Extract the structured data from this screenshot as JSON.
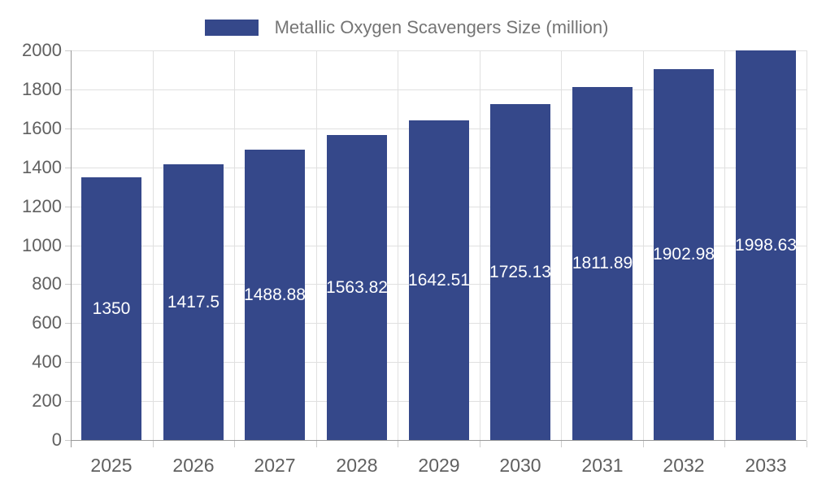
{
  "chart_data": {
    "type": "bar",
    "legend": "Metallic Oxygen Scavengers Size (million)",
    "categories": [
      "2025",
      "2026",
      "2027",
      "2028",
      "2029",
      "2030",
      "2031",
      "2032",
      "2033"
    ],
    "values": [
      1350,
      1417.5,
      1488.88,
      1563.82,
      1642.51,
      1725.13,
      1811.89,
      1902.98,
      1998.63
    ],
    "value_labels": [
      "1350",
      "1417.5",
      "1488.88",
      "1563.82",
      "1642.51",
      "1725.13",
      "1811.89",
      "1902.98",
      "1998.63"
    ],
    "xlabel": "",
    "ylabel": "",
    "ylim": [
      0,
      2000
    ],
    "ytick_interval": 200,
    "ytick_labels": [
      "0",
      "200",
      "400",
      "600",
      "800",
      "1000",
      "1200",
      "1400",
      "1600",
      "1800",
      "2000"
    ],
    "grid": true,
    "legend_position": "top-center",
    "bar_label_position": "inside-center",
    "colors": {
      "bar": "#35488A",
      "grid": "#E0E0E0",
      "axis": "#999999",
      "tick": "#CCCCCC",
      "axis_label": "#606060",
      "legend_text": "#757575",
      "bar_label": "#FFFFFF",
      "background": "#FFFFFF"
    }
  }
}
